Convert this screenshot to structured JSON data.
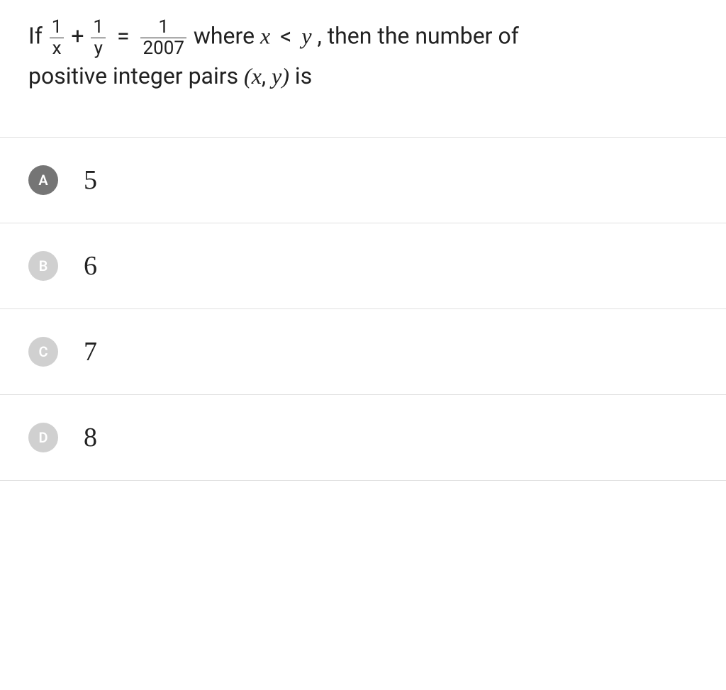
{
  "question": {
    "prefix": "If ",
    "frac1_num": "1",
    "frac1_den": "x",
    "plus": " + ",
    "frac2_num": "1",
    "frac2_den": "y",
    "equals": "=",
    "frac3_num": "1",
    "frac3_den": "2007",
    "where_text": " where ",
    "var_x": "x",
    "lt": "<",
    "var_y": "y",
    "then_text": ", then the number of",
    "line2_prefix": "positive integer pairs ",
    "pair_open": "(",
    "pair_x": "x",
    "pair_comma": ", ",
    "pair_y": "y",
    "pair_close": ")",
    "is_text": " is"
  },
  "options": [
    {
      "letter": "A",
      "text": "5",
      "selected": true
    },
    {
      "letter": "B",
      "text": "6",
      "selected": false
    },
    {
      "letter": "C",
      "text": "7",
      "selected": false
    },
    {
      "letter": "D",
      "text": "8",
      "selected": false
    }
  ],
  "styling": {
    "background_color": "#ffffff",
    "text_color": "#212121",
    "border_color": "#e0e0e0",
    "circle_unselected_bg": "#d0d0d0",
    "circle_selected_bg": "#757575",
    "circle_text_color": "#ffffff",
    "question_fontsize": 32,
    "option_fontsize": 38,
    "circle_letter_fontsize": 20,
    "frac_fontsize": 26
  }
}
